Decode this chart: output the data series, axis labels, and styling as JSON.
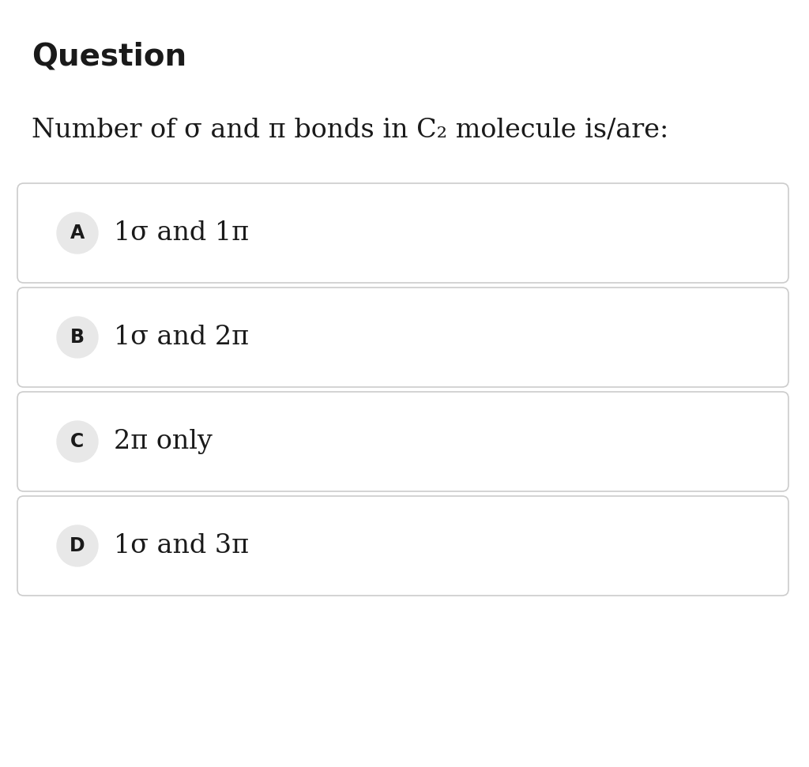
{
  "title": "Question",
  "question": "Number of σ and π bonds in C₂ molecule is/are:",
  "options": [
    {
      "label": "A",
      "text": "1σ and 1π"
    },
    {
      "label": "B",
      "text": "1σ and 2π"
    },
    {
      "label": "C",
      "text": "2π only"
    },
    {
      "label": "D",
      "text": "1σ and 3π"
    }
  ],
  "background_color": "#ffffff",
  "box_fill_color": "#ffffff",
  "box_border_color": "#cccccc",
  "label_circle_color": "#e8e8e8",
  "text_color": "#1a1a1a",
  "title_fontsize": 28,
  "question_fontsize": 24,
  "option_fontsize": 24,
  "label_fontsize": 17
}
